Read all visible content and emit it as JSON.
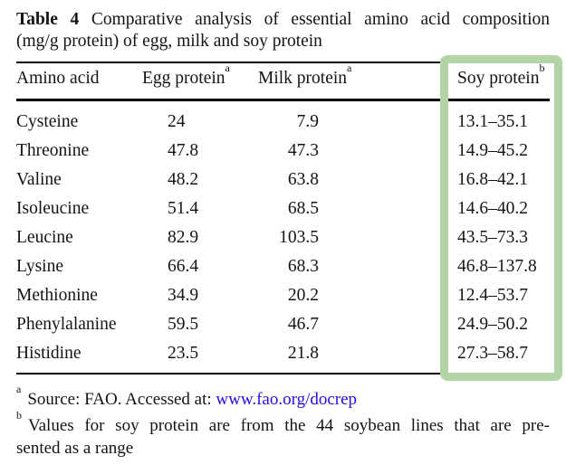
{
  "caption": {
    "label": "Table 4",
    "line1_rest": "Comparative analysis of essential amino acid composition",
    "line2": "(mg/g protein) of egg, milk and soy protein"
  },
  "table": {
    "headers": [
      {
        "text": "Amino acid",
        "sup": ""
      },
      {
        "text": "Egg protein",
        "sup": "a"
      },
      {
        "text": "Milk protein",
        "sup": "a"
      },
      {
        "text": "Soy protein",
        "sup": "b"
      }
    ],
    "rows": [
      {
        "amino_acid": "Cysteine",
        "egg": "24",
        "milk": "7.9",
        "soy": "13.1–35.1"
      },
      {
        "amino_acid": "Threonine",
        "egg": "47.8",
        "milk": "47.3",
        "soy": "14.9–45.2"
      },
      {
        "amino_acid": "Valine",
        "egg": "48.2",
        "milk": "63.8",
        "soy": "16.8–42.1"
      },
      {
        "amino_acid": "Isoleucine",
        "egg": "51.4",
        "milk": "68.5",
        "soy": "14.6–40.2"
      },
      {
        "amino_acid": "Leucine",
        "egg": "82.9",
        "milk": "103.5",
        "soy": "43.5–73.3"
      },
      {
        "amino_acid": "Lysine",
        "egg": "66.4",
        "milk": "68.3",
        "soy": "46.8–137.8"
      },
      {
        "amino_acid": "Methionine",
        "egg": "34.9",
        "milk": "20.2",
        "soy": "12.4–53.7"
      },
      {
        "amino_acid": "Phenylalanine",
        "egg": "59.5",
        "milk": "46.7",
        "soy": "24.9–50.2"
      },
      {
        "amino_acid": "Histidine",
        "egg": "23.5",
        "milk": "21.8",
        "soy": "27.3–58.7"
      }
    ]
  },
  "footnotes": {
    "a": {
      "marker": "a",
      "text": "Source: FAO. Accessed at:",
      "link": "www.fao.org/docrep"
    },
    "b": {
      "marker": "b",
      "line1": "Values for soy protein are from the 44 soybean lines that are pre-",
      "line2": "sented as a range"
    }
  },
  "colors": {
    "highlight_green": "#b3d5a5",
    "link_blue": "#2310e0"
  }
}
